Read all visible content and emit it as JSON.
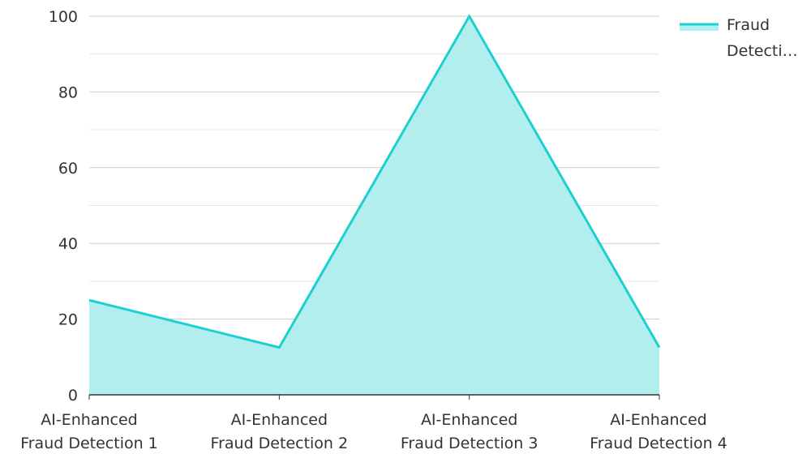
{
  "chart_data": {
    "type": "area",
    "categories": [
      [
        "AI-Enhanced",
        "Fraud Detection 1"
      ],
      [
        "AI-Enhanced",
        "Fraud Detection 2"
      ],
      [
        "AI-Enhanced",
        "Fraud Detection 3"
      ],
      [
        "AI-Enhanced",
        "Fraud Detection 4"
      ]
    ],
    "series": [
      {
        "name": "Fraud Detecti…",
        "values": [
          25,
          12.5,
          100,
          12.5
        ],
        "color": "#1ecfcf",
        "fill": "#b3eeee"
      }
    ],
    "ylim": [
      0,
      100
    ],
    "yticks": [
      0,
      20,
      40,
      60,
      80,
      100
    ],
    "grid": true,
    "legend": "top-right",
    "legend_lines": [
      "Fraud",
      "Detecti…"
    ]
  }
}
